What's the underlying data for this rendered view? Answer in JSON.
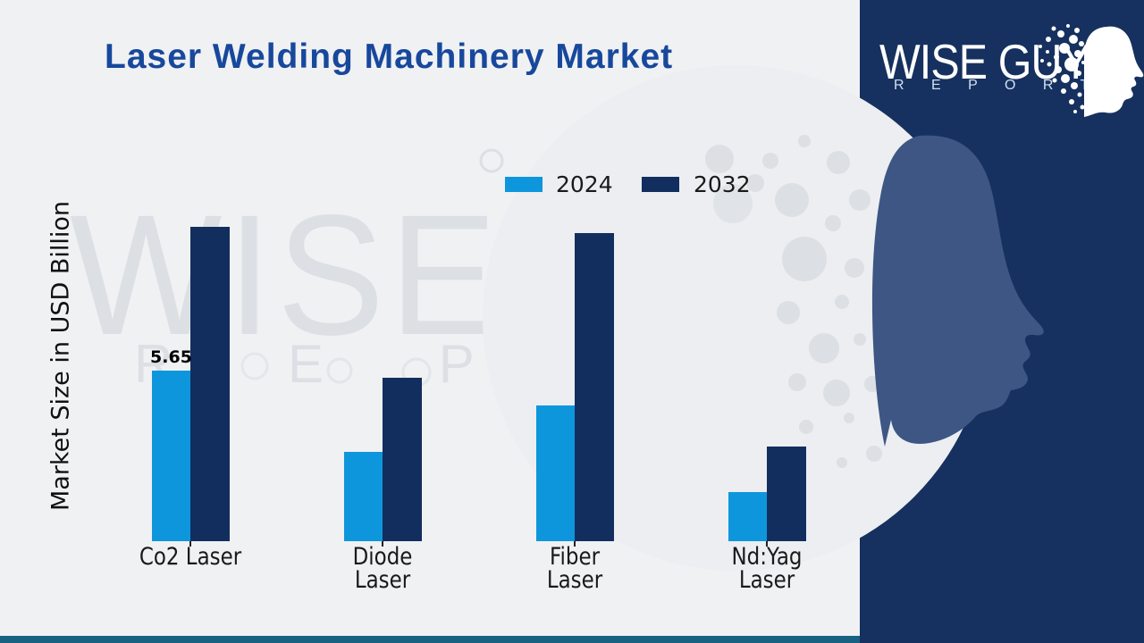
{
  "title": "Laser Welding Machinery Market",
  "logo": {
    "brand": "WISE GUY",
    "sub": "R E P O R T S"
  },
  "watermark": {
    "line1": "WISE GUY",
    "line2": "R E P O R T S"
  },
  "colors": {
    "background": "#F0F1F3",
    "title_blue": "#17489C",
    "series_2024": "#0E96DD",
    "series_2032": "#112E5E",
    "panel_navy": "#16315F",
    "accent_teal": "#186181",
    "circle_light": "#ECEEF1",
    "silhouette_blue": "#3D5684",
    "watermark_gray": "#DCDFE4",
    "logo_white": "#FFFFFF",
    "logo_reports_text": "#CFE0F2",
    "text_dark": "#1A1A1A"
  },
  "chart_data": {
    "type": "bar",
    "title": "Laser Welding Machinery Market",
    "xlabel": "",
    "ylabel": "Market Size in USD Billion",
    "categories": [
      "Co2 Laser",
      "Diode Laser",
      "Fiber Laser",
      "Nd:Yag Laser"
    ],
    "category_label_lines": [
      [
        "Co2 Laser"
      ],
      [
        "Diode",
        "Laser"
      ],
      [
        "Fiber",
        "Laser"
      ],
      [
        "Nd:Yag",
        "Laser"
      ]
    ],
    "series": [
      {
        "name": "2024",
        "color": "#0E96DD",
        "values": [
          5.65,
          2.95,
          4.5,
          1.62
        ]
      },
      {
        "name": "2032",
        "color": "#112E5E",
        "values": [
          10.4,
          5.4,
          10.2,
          3.15
        ]
      }
    ],
    "annotations": [
      {
        "series_index": 0,
        "category_index": 0,
        "text": "5.65"
      }
    ],
    "ylim": [
      0,
      11.7
    ],
    "grid": false,
    "axis_lines": false,
    "legend_position": "top"
  }
}
